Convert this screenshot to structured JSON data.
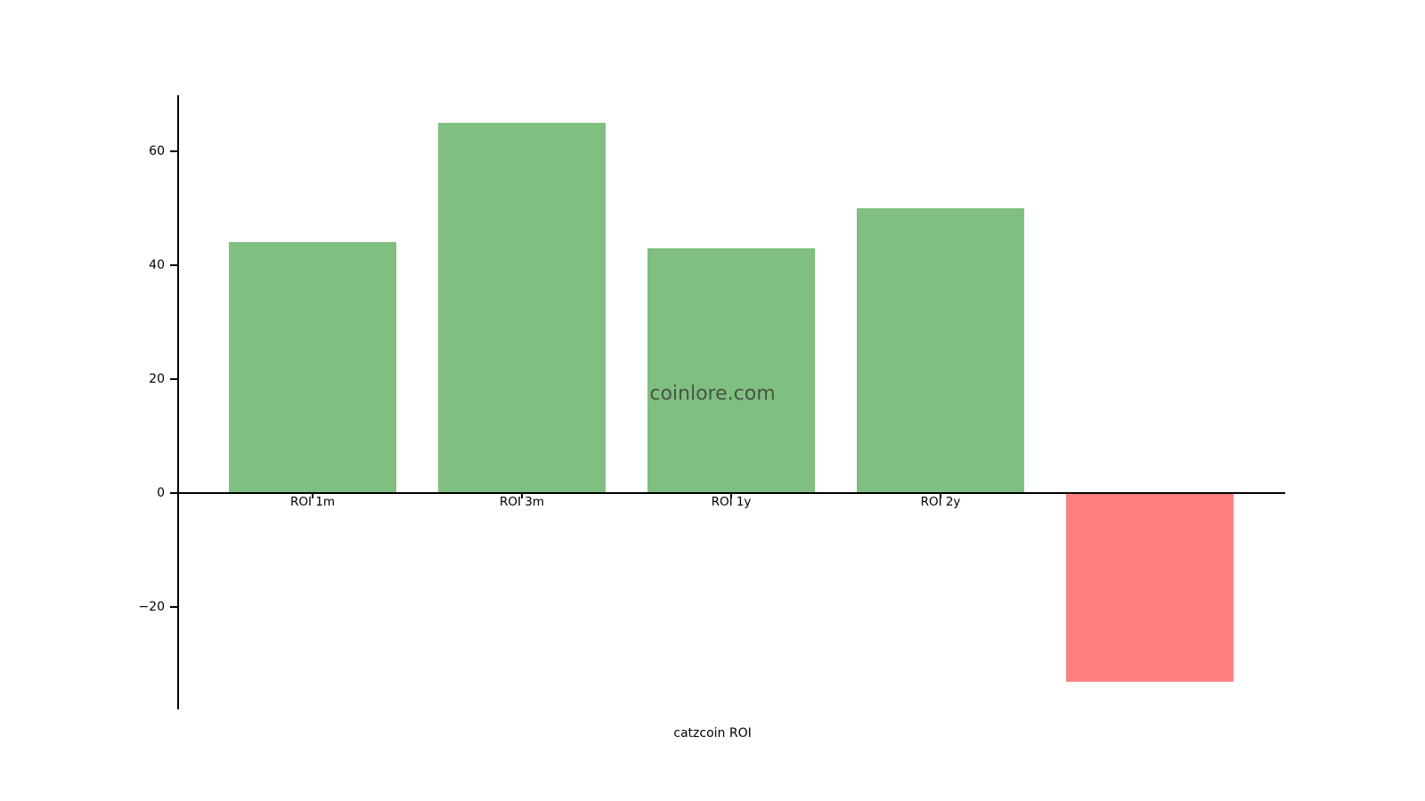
{
  "figure": {
    "title": "catzcoin ROI",
    "watermark": "coinlore.com"
  },
  "chart_data": {
    "type": "bar",
    "title": "catzcoin ROI",
    "watermark": "coinlore.com",
    "categories": [
      "ROI 1m",
      "ROI 3m",
      "ROI 1y",
      "ROI 2y",
      ""
    ],
    "values": [
      44,
      65,
      43,
      50,
      -33
    ],
    "positive_color": "#7fbf7f",
    "negative_color": "#ff7f7f",
    "axis_color": "#000000",
    "yticks": [
      60,
      40,
      20,
      0,
      -20
    ],
    "ytick_labels": [
      "60",
      "40",
      "20",
      "0",
      "−20"
    ],
    "ylim": [
      -37.9,
      69.9
    ],
    "xlabel": "catzcoin ROI",
    "ylabel": "",
    "grid": false,
    "legend": false
  }
}
